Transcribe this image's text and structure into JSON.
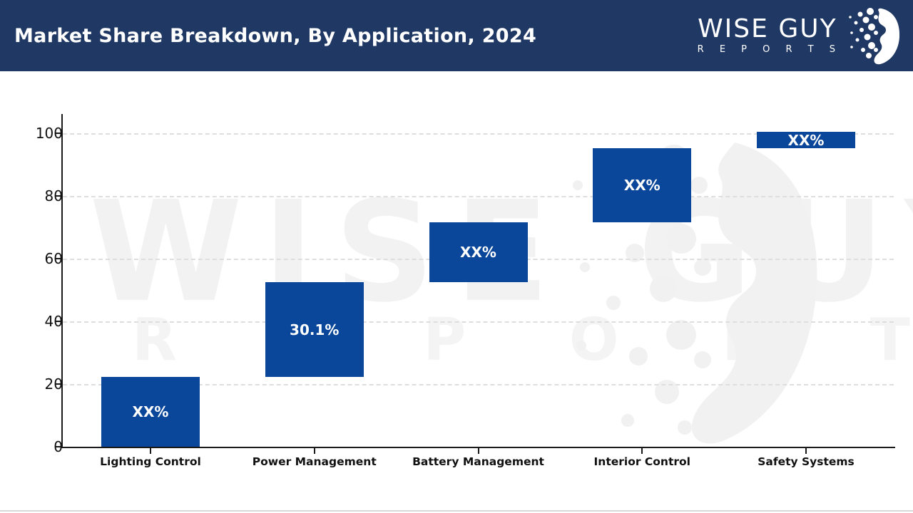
{
  "header": {
    "title": "Market Share Breakdown, By Application, 2024",
    "bg_color": "#203864",
    "logo": {
      "line1": "WISE GUY",
      "line2": "R E P O R T S"
    }
  },
  "watermark": {
    "line1": "WISE GUY",
    "line2": "R E P O R T S"
  },
  "chart_data": {
    "type": "bar",
    "subtype": "waterfall",
    "title": "Market Share Breakdown, By Application, 2024",
    "categories": [
      "Lighting Control",
      "Power Management",
      "Battery Management",
      "Interior Control",
      "Safety Systems"
    ],
    "bars": [
      {
        "category": "Lighting Control",
        "start": 0,
        "end": 22.3,
        "label": "XX%"
      },
      {
        "category": "Power Management",
        "start": 22.3,
        "end": 52.4,
        "label": "30.1%"
      },
      {
        "category": "Battery Management",
        "start": 52.4,
        "end": 71.5,
        "label": "XX%"
      },
      {
        "category": "Interior Control",
        "start": 71.5,
        "end": 95.2,
        "label": "XX%"
      },
      {
        "category": "Safety Systems",
        "start": 95.2,
        "end": 100.4,
        "label": "XX%"
      }
    ],
    "revealed_value": "30.1%",
    "y_ticks": [
      0,
      20,
      40,
      60,
      80,
      100
    ],
    "ylim": [
      0,
      105
    ],
    "xlabel": "",
    "ylabel": "",
    "grid": "horizontal-dashed",
    "legend": "none",
    "bar_color": "#0a4699",
    "bar_label_color": "#ffffff",
    "axis_color": "#1a1a1a",
    "gridline_color": "#dedede"
  },
  "footer": {
    "divider_color": "#d9d9d9"
  }
}
